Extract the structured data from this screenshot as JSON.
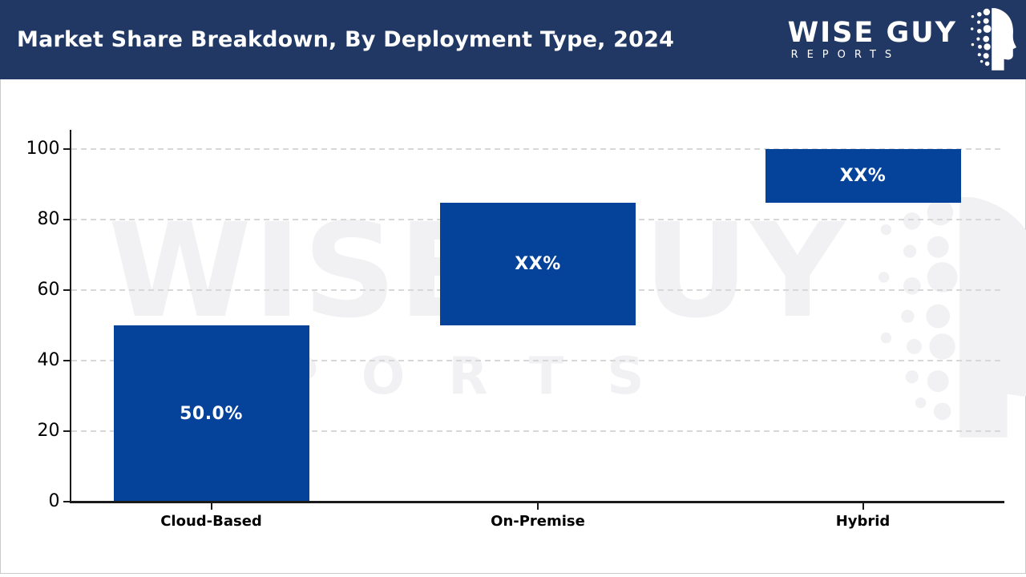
{
  "header": {
    "title": "Market Share Breakdown, By Deployment Type, 2024",
    "logo": {
      "line1": "WISE GUY",
      "line2": "REPORTS",
      "face_icon": "dotted-head-profile"
    }
  },
  "watermark": {
    "line1": "WISE GUY",
    "line2": "REPORTS"
  },
  "chart_data": {
    "type": "bar",
    "subtype": "waterfall-stacked-breakdown",
    "title": "Market Share Breakdown, By Deployment Type, 2024",
    "categories": [
      "Cloud-Based",
      "On-Premise",
      "Hybrid"
    ],
    "segments": [
      {
        "category": "Cloud-Based",
        "base": 0,
        "top": 50,
        "value": 50.0,
        "label": "50.0%"
      },
      {
        "category": "On-Premise",
        "base": 50,
        "top": 84.7,
        "value": 34.7,
        "label": "XX%"
      },
      {
        "category": "Hybrid",
        "base": 84.7,
        "top": 100,
        "value": 15.3,
        "label": "XX%"
      }
    ],
    "yticks": [
      0,
      20,
      40,
      60,
      80,
      100
    ],
    "ylim": [
      0,
      105
    ],
    "xlabel": "",
    "ylabel": "",
    "grid": "horizontal-dashed",
    "legend": "none",
    "bar_color": "#05429a",
    "bar_label_color": "#ffffff"
  },
  "colors": {
    "header_bg": "#213864",
    "bar": "#05429a",
    "grid": "#d8d8d8",
    "axis": "#1a1a1a",
    "watermark": "#f1f1f4",
    "card_border": "#cbcbcb"
  }
}
